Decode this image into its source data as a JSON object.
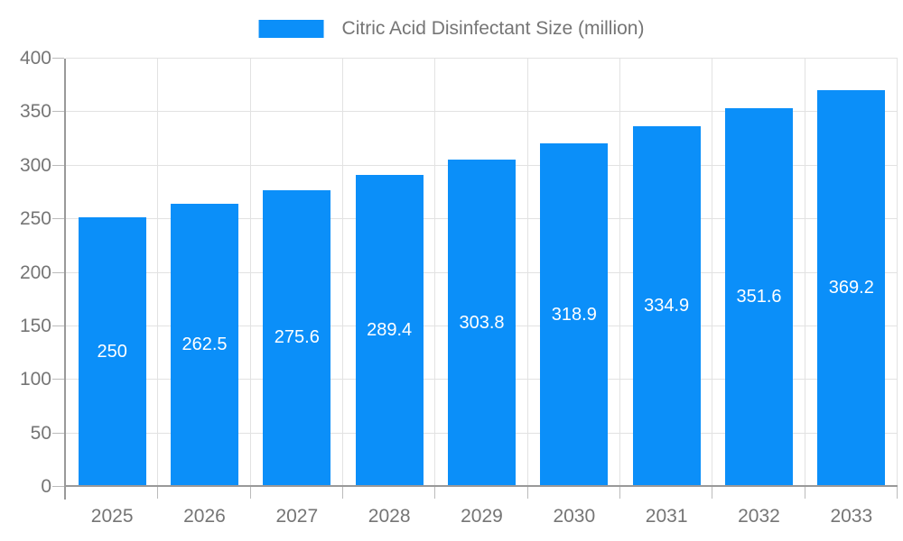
{
  "chart_data": {
    "type": "bar",
    "title": "",
    "legend": "Citric Acid Disinfectant Size (million)",
    "legend_position": "top-center",
    "categories": [
      "2025",
      "2026",
      "2027",
      "2028",
      "2029",
      "2030",
      "2031",
      "2032",
      "2033"
    ],
    "values": [
      250,
      262.5,
      275.6,
      289.4,
      303.8,
      318.9,
      334.9,
      351.6,
      369.2
    ],
    "xlabel": "",
    "ylabel": "",
    "ylim": [
      0,
      400
    ],
    "yticks": [
      0,
      50,
      100,
      150,
      200,
      250,
      300,
      350,
      400
    ],
    "grid": true,
    "value_label_position": "inside-middle",
    "colors": {
      "bar": "#0b8ff9",
      "axis_line": "#999999",
      "grid_line": "#e2e2e2",
      "tick_mark": "#bbbbbb",
      "axis_text": "#757575",
      "value_label_text": "#ffffff",
      "background": "#ffffff"
    }
  }
}
